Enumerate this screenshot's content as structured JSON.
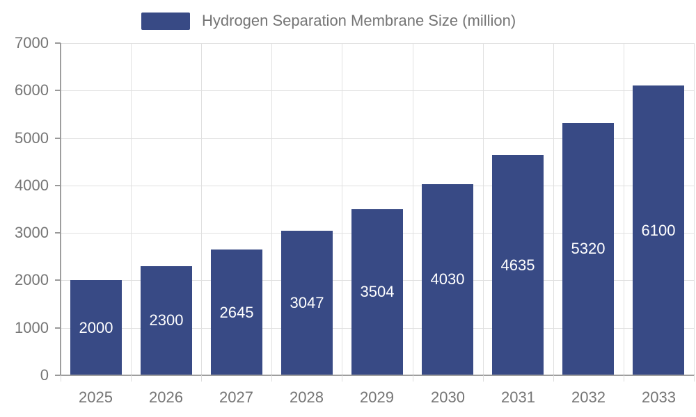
{
  "legend": {
    "label": "Hydrogen Separation Membrane Size (million)",
    "swatch_color": "#384A85"
  },
  "chart_data": {
    "type": "bar",
    "title": "Hydrogen Separation Membrane Size (million)",
    "series_name": "Hydrogen Separation Membrane Size (million)",
    "categories": [
      "2025",
      "2026",
      "2027",
      "2028",
      "2029",
      "2030",
      "2031",
      "2032",
      "2033"
    ],
    "values": [
      2000,
      2300,
      2645,
      3047,
      3504,
      4030,
      4635,
      5320,
      6100
    ],
    "value_labels": [
      "2000",
      "2300",
      "2645",
      "3047",
      "3504",
      "4030",
      "4635",
      "5320",
      "6100"
    ],
    "xlabel": "",
    "ylabel": "",
    "ylim": [
      0,
      7000
    ],
    "yticks": [
      0,
      1000,
      2000,
      3000,
      4000,
      5000,
      6000,
      7000
    ],
    "grid": true,
    "legend_position": "top",
    "value_label_position": "inside-center",
    "colors": {
      "bar": "#384A85",
      "value_label": "#FFFFFF",
      "axis_label": "#757575",
      "axis_line": "#9E9E9E",
      "gridline": "#E0E0E0",
      "y_tick": "#999999",
      "x_tick": "#DEDEDE",
      "background": "#FFFFFF"
    }
  }
}
